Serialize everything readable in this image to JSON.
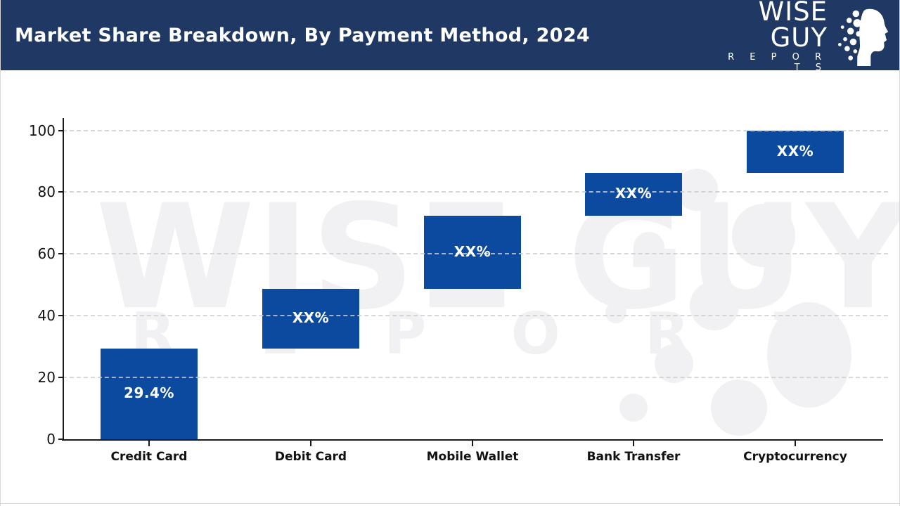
{
  "header": {
    "title": "Market Share Breakdown, By Payment Method, 2024",
    "background_color": "#1f3864",
    "logo": {
      "line1": "WISE GUY",
      "line2": "R E P O R T S"
    }
  },
  "watermark": {
    "line1": "WISE GUY",
    "line2": "R E P O R T S"
  },
  "chart_data": {
    "type": "bar",
    "subtype": "waterfall",
    "title": "Market Share Breakdown, By Payment Method, 2024",
    "xlabel": "",
    "ylabel": "",
    "ylim": [
      0,
      107
    ],
    "grid": "horizontal-dashed",
    "legend": "none",
    "bar_color": "#0b4a9e",
    "label_color": "#ffffff",
    "categories": [
      "Credit Card",
      "Debit Card",
      "Mobile Wallet",
      "Bank Transfer",
      "Cryptocurrency"
    ],
    "yticks": [
      0,
      20,
      40,
      60,
      80,
      100
    ],
    "segments": [
      {
        "category": "Credit Card",
        "start": 0,
        "end": 29.4,
        "value_label": "29.4%"
      },
      {
        "category": "Debit Card",
        "start": 29.4,
        "end": 48.8,
        "value_label": "XX%"
      },
      {
        "category": "Mobile Wallet",
        "start": 48.8,
        "end": 72.4,
        "value_label": "XX%"
      },
      {
        "category": "Bank Transfer",
        "start": 72.4,
        "end": 86.2,
        "value_label": "XX%"
      },
      {
        "category": "Cryptocurrency",
        "start": 86.2,
        "end": 100,
        "value_label": "XX%"
      }
    ]
  }
}
